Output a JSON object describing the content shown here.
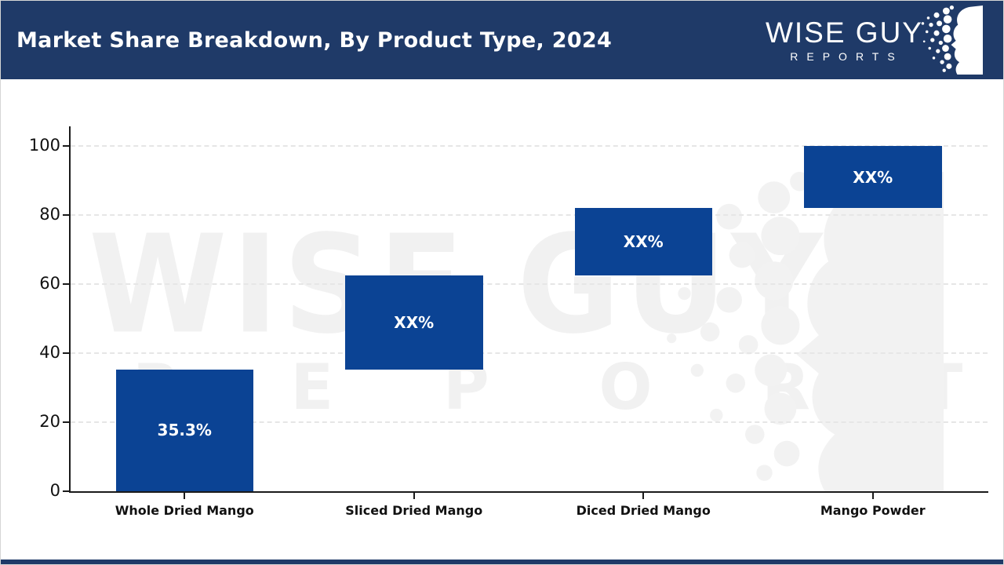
{
  "header": {
    "title": "Market Share Breakdown, By Product Type, 2024",
    "logo": {
      "name": "WISE GUY",
      "sub": "REPORTS"
    }
  },
  "watermark": {
    "line1": "WISE GUY",
    "line2": "R E P O R T S"
  },
  "footer": {
    "bar_color": "#1f3a68"
  },
  "colors": {
    "header_bg": "#1f3a68",
    "bar": "#0b4394",
    "bar_value_text": "#ffffff",
    "axis": "#1a1a1a",
    "grid": "#e6e6e6",
    "watermark": "#f1f1f1"
  },
  "chart_data": {
    "type": "bar",
    "subtype": "stacked-waterfall-floating-bars",
    "title": "Market Share Breakdown, By Product Type, 2024",
    "categories": [
      "Whole Dried Mango",
      "Sliced Dried Mango",
      "Diced Dried Mango",
      "Mango Powder"
    ],
    "bars": [
      {
        "start": 0,
        "end": 35.3,
        "label": "35.3%"
      },
      {
        "start": 35.3,
        "end": 62.4,
        "label": "XX%"
      },
      {
        "start": 62.4,
        "end": 82.0,
        "label": "XX%"
      },
      {
        "start": 82.0,
        "end": 100.0,
        "label": "XX%"
      }
    ],
    "yticks": [
      0,
      20,
      40,
      60,
      80,
      100
    ],
    "ylim": [
      0,
      105
    ],
    "xlabel": "",
    "ylabel": "",
    "grid": {
      "show": true,
      "style": "dashed",
      "orientation": "horizontal"
    },
    "legend": "none",
    "bar_color": "#0b4394"
  }
}
